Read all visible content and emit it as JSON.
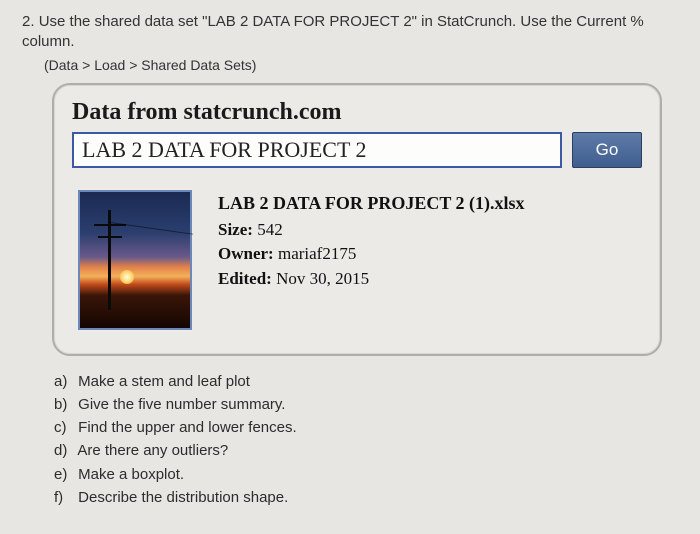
{
  "question": {
    "number": "2.",
    "text": "Use the shared data set \"LAB 2 DATA FOR PROJECT 2\" in StatCrunch. Use the Current % column.",
    "path_hint": "(Data > Load > Shared Data Sets)"
  },
  "card": {
    "title": "Data from statcrunch.com",
    "search_value": "LAB 2 DATA FOR PROJECT 2",
    "go_label": "Go",
    "result": {
      "filename": "LAB 2 DATA FOR PROJECT 2 (1).xlsx",
      "size_label": "Size:",
      "size_value": "542",
      "owner_label": "Owner:",
      "owner_value": "mariaf2175",
      "edited_label": "Edited:",
      "edited_value": "Nov 30, 2015"
    },
    "thumbnail": {
      "border_color": "#6a88b8",
      "sky_top": "#1a2a52",
      "horizon": "#e0804a",
      "ground": "#140602"
    }
  },
  "subquestions": [
    {
      "letter": "a)",
      "text": "Make a stem and leaf plot"
    },
    {
      "letter": "b)",
      "text": "Give the five number summary."
    },
    {
      "letter": "c)",
      "text": "Find the upper and lower fences."
    },
    {
      "letter": "d)",
      "text": "Are there any outliers?"
    },
    {
      "letter": "e)",
      "text": "Make a boxplot."
    },
    {
      "letter": "f)",
      "text": "Describe the distribution shape."
    }
  ],
  "colors": {
    "page_bg": "#e8e6e3",
    "card_border": "#b0aea9",
    "input_border": "#3b5aa3",
    "button_bg_top": "#5e7aa8",
    "button_bg_bottom": "#3f5e8f",
    "text": "#2a2a2a"
  }
}
